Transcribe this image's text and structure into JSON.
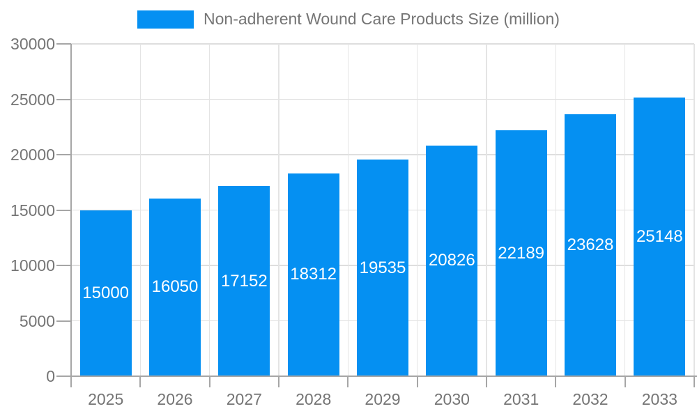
{
  "chart_data": {
    "type": "bar",
    "series_name": "Non-adherent Wound Care Products Size (million)",
    "categories": [
      "2025",
      "2026",
      "2027",
      "2028",
      "2029",
      "2030",
      "2031",
      "2032",
      "2033"
    ],
    "values": [
      15000,
      16050,
      17152,
      18312,
      19535,
      20826,
      22189,
      23628,
      25148
    ],
    "yticks": [
      0,
      5000,
      10000,
      15000,
      20000,
      25000,
      30000
    ],
    "ylim": [
      0,
      30000
    ],
    "grid": true,
    "legend_position": "top-center",
    "value_labels": "centered-inside-bars-white",
    "colors": {
      "bar": "#0590f2",
      "value_label": "#ffffff",
      "axis_text": "#757575",
      "axis_line": "#a6a6a6",
      "gridline": "#dedede",
      "background": "#ffffff"
    }
  }
}
